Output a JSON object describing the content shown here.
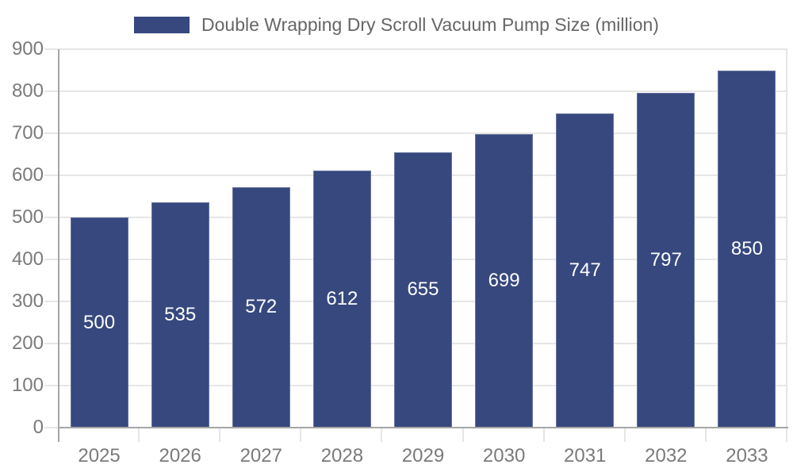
{
  "legend": {
    "label": "Double Wrapping Dry Scroll Vacuum Pump Size (million)"
  },
  "chart_data": {
    "type": "bar",
    "title": "Double Wrapping Dry Scroll Vacuum Pump Size (million)",
    "series_name": "Double Wrapping Dry Scroll Vacuum Pump Size (million)",
    "categories": [
      "2025",
      "2026",
      "2027",
      "2028",
      "2029",
      "2030",
      "2031",
      "2032",
      "2033"
    ],
    "values": [
      500,
      535,
      572,
      612,
      655,
      699,
      747,
      797,
      850
    ],
    "xlabel": "",
    "ylabel": "",
    "ylim": [
      0,
      900
    ],
    "ytick_step": 100,
    "ytick_labels": [
      "0",
      "100",
      "200",
      "300",
      "400",
      "500",
      "600",
      "700",
      "800",
      "900"
    ],
    "grid": true,
    "legend_position": "top-center",
    "bar_label_position": "inside-middle",
    "colors": {
      "bar": "#37487E",
      "bar_border": "#68759F",
      "bar_label": "#FFFFFF",
      "grid": "#E6E6E6",
      "axis": "#A6A6A6",
      "tick_label": "#7A7A7A",
      "legend_text": "#666666",
      "background": "#FFFFFF"
    }
  }
}
